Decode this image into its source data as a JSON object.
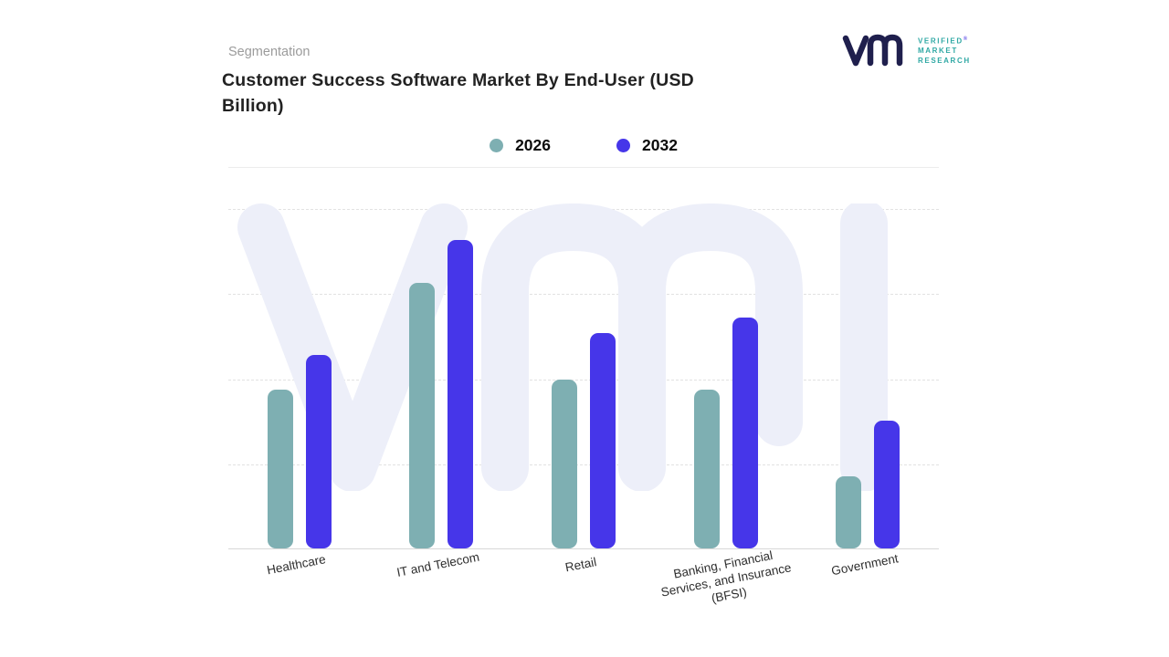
{
  "header": {
    "eyebrow": "Segmentation",
    "title": "Customer Success Software Market By End-User (USD Billion)"
  },
  "logo": {
    "line1": "VERIFIED",
    "line2": "MARKET",
    "line3": "RESEARCH",
    "registered": "®"
  },
  "colors": {
    "series_2026": "#7EAFB2",
    "series_2032": "#4636E9",
    "logo_teal": "#2fa8a4",
    "watermark": "#EDEFF9"
  },
  "chart_data": {
    "type": "bar",
    "title": "Customer Success Software Market By End-User (USD Billion)",
    "categories": [
      "Healthcare",
      "IT and Telecom",
      "Retail",
      "Banking, Financial Services, and Insurance (BFSI)",
      "Government"
    ],
    "series": [
      {
        "name": "2026",
        "color": "#7EAFB2",
        "values": [
          5.1,
          8.5,
          5.4,
          5.1,
          2.3
        ]
      },
      {
        "name": "2032",
        "color": "#4636E9",
        "values": [
          6.2,
          9.9,
          6.9,
          7.4,
          4.1
        ]
      }
    ],
    "ylabel": "USD Billion",
    "xlabel": "",
    "ylim": [
      0,
      11
    ],
    "grid": "dashed horizontal",
    "legend_position": "top-center",
    "value_axis_labels_visible": false
  }
}
